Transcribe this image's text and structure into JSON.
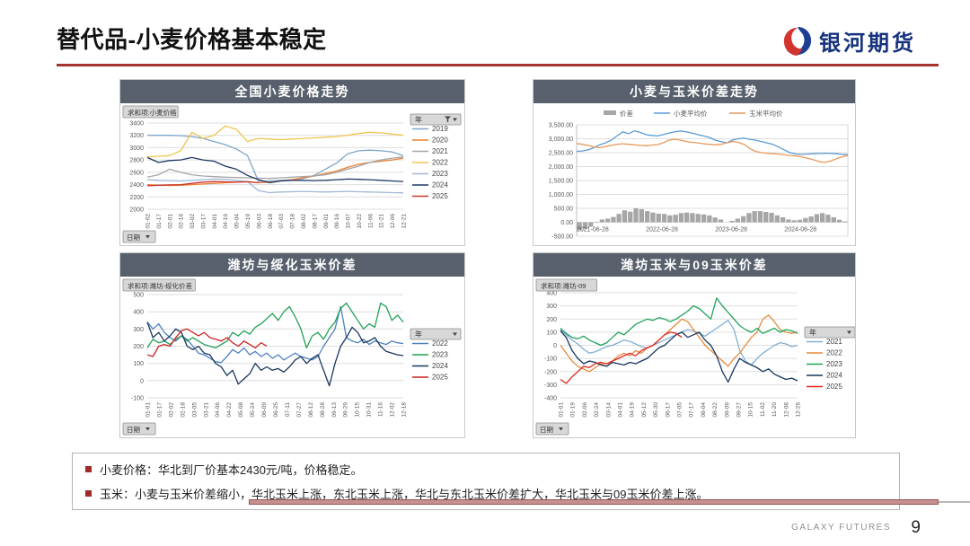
{
  "slide": {
    "title": "替代品-小麦价格基本稳定",
    "logo_text": "银河期货",
    "footer_brand": "GALAXY FUTURES",
    "page_number": "9",
    "accent_red": "#A3332E",
    "header_bar_color": "#57606C"
  },
  "notes": {
    "bullets": [
      "小麦价格：华北到厂价基本2430元/吨，价格稳定。",
      "玉米：小麦与玉米价差缩小，华北玉米上涨，东北玉米上涨，华北与东北玉米价差扩大，华北玉米与09玉米价差上涨。"
    ]
  },
  "chart_data": [
    {
      "id": "national-wheat-price",
      "type": "line",
      "title": "全国小麦价格走势",
      "pivot_label": "求和项:小麦价格",
      "legend_header": "年",
      "legend_filtered": true,
      "bottom_chip": "日期",
      "ylim": [
        2000,
        3400
      ],
      "ytick_step": 200,
      "y_format": "plain",
      "x_labels": [
        "01-02",
        "01-17",
        "02-01",
        "02-16",
        "03-02",
        "03-17",
        "04-01",
        "04-16",
        "05-04",
        "05-19",
        "06-03",
        "06-18",
        "07-03",
        "07-18",
        "08-02",
        "08-17",
        "09-01",
        "09-16",
        "10-07",
        "10-22",
        "11-06",
        "11-21",
        "12-06",
        "12-21"
      ],
      "series": [
        {
          "name": "2019",
          "color": "#7EA6CB",
          "values": [
            3200,
            3200,
            3200,
            3195,
            3180,
            3150,
            3100,
            3050,
            2980,
            2870,
            2450,
            2460,
            2470,
            2480,
            2500,
            2550,
            2650,
            2750,
            2900,
            2950,
            2960,
            2950,
            2930,
            2870
          ]
        },
        {
          "name": "2020",
          "color": "#ED7D31",
          "values": [
            2400,
            2390,
            2385,
            2390,
            2400,
            2410,
            2420,
            2430,
            2440,
            2450,
            2430,
            2440,
            2460,
            2480,
            2510,
            2540,
            2580,
            2620,
            2680,
            2730,
            2760,
            2780,
            2800,
            2830
          ]
        },
        {
          "name": "2021",
          "color": "#A5A5A5",
          "values": [
            2520,
            2560,
            2650,
            2600,
            2560,
            2540,
            2530,
            2520,
            2515,
            2510,
            2505,
            2500,
            2510,
            2520,
            2530,
            2540,
            2560,
            2600,
            2650,
            2700,
            2760,
            2800,
            2830,
            2850
          ]
        },
        {
          "name": "2022",
          "color": "#F1C44F",
          "values": [
            2850,
            2860,
            2870,
            2950,
            3250,
            3150,
            3200,
            3350,
            3300,
            3100,
            3150,
            3140,
            3130,
            3140,
            3150,
            3160,
            3170,
            3180,
            3200,
            3230,
            3250,
            3240,
            3220,
            3200
          ]
        },
        {
          "name": "2023",
          "color": "#9FB8D6",
          "values": [
            2480,
            2470,
            2465,
            2460,
            2470,
            2480,
            2490,
            2485,
            2470,
            2450,
            2300,
            2270,
            2280,
            2285,
            2290,
            2285,
            2280,
            2285,
            2290,
            2285,
            2280,
            2275,
            2270,
            2265
          ]
        },
        {
          "name": "2024",
          "color": "#1F3864",
          "values": [
            2840,
            2760,
            2790,
            2800,
            2840,
            2800,
            2780,
            2700,
            2650,
            2550,
            2480,
            2430,
            2460,
            2470,
            2470,
            2465,
            2470,
            2480,
            2490,
            2485,
            2480,
            2470,
            2460,
            2450
          ]
        },
        {
          "name": "2025",
          "color": "#C9342E",
          "values": [
            2380,
            2390,
            2395,
            2400,
            2420,
            2440,
            2450,
            2445,
            2440,
            2445,
            2430,
            null,
            null,
            null,
            null,
            null,
            null,
            null,
            null,
            null,
            null,
            null,
            null,
            null
          ]
        }
      ]
    },
    {
      "id": "wheat-corn-spread",
      "type": "line+bar",
      "title": "小麦与玉米价差走势",
      "ylim": [
        -500,
        3500
      ],
      "ytick_step": 500,
      "y_format": "comma2",
      "x_labels": [
        "2021-06-28",
        "2022-06-28",
        "2023-06-28",
        "2024-06-28"
      ],
      "bars": {
        "name": "价差",
        "color": "#A6A6A6",
        "values": [
          -280,
          -240,
          -160,
          -20,
          100,
          130,
          190,
          300,
          430,
          380,
          500,
          470,
          400,
          350,
          310,
          300,
          250,
          270,
          330,
          350,
          330,
          300,
          280,
          250,
          170,
          100,
          0,
          50,
          130,
          220,
          330,
          400,
          400,
          370,
          340,
          250,
          180,
          100,
          70,
          90,
          150,
          210,
          290,
          330,
          270,
          180,
          90,
          30
        ]
      },
      "series": [
        {
          "name": "小麦平均价",
          "color": "#5B9BD5",
          "values": [
            2550,
            2560,
            2600,
            2680,
            2780,
            2850,
            2950,
            3100,
            3250,
            3180,
            3280,
            3230,
            3150,
            3120,
            3100,
            3150,
            3200,
            3250,
            3280,
            3250,
            3200,
            3150,
            3100,
            3050,
            2950,
            2900,
            2850,
            2950,
            3000,
            3020,
            2980,
            2950,
            2900,
            2850,
            2800,
            2700,
            2600,
            2500,
            2450,
            2440,
            2450,
            2460,
            2470,
            2480,
            2470,
            2460,
            2440,
            2430
          ]
        },
        {
          "name": "玉米平均价",
          "color": "#E8995C",
          "values": [
            2830,
            2800,
            2760,
            2700,
            2680,
            2720,
            2760,
            2800,
            2820,
            2800,
            2780,
            2760,
            2750,
            2770,
            2790,
            2850,
            2950,
            2980,
            2950,
            2900,
            2870,
            2850,
            2820,
            2800,
            2780,
            2800,
            2850,
            2900,
            2870,
            2800,
            2650,
            2550,
            2500,
            2480,
            2460,
            2450,
            2420,
            2400,
            2380,
            2350,
            2300,
            2250,
            2180,
            2150,
            2200,
            2280,
            2350,
            2400
          ]
        }
      ]
    },
    {
      "id": "weifang-suihua-corn-spread",
      "type": "line",
      "title": "潍坊与绥化玉米价差",
      "pivot_label": "求和项:潍坊-绥化价差",
      "legend_header": "年",
      "legend_filtered": false,
      "bottom_chip": "日期",
      "ylim": [
        -100,
        500
      ],
      "ytick_step": 100,
      "y_format": "plain",
      "x_labels": [
        "01-01",
        "01-17",
        "02-02",
        "02-18",
        "03-05",
        "03-21",
        "04-06",
        "04-22",
        "05-08",
        "05-24",
        "06-09",
        "06-25",
        "07-11",
        "07-27",
        "08-12",
        "08-28",
        "09-13",
        "09-29",
        "10-15",
        "10-31",
        "11-16",
        "12-02",
        "12-18"
      ],
      "series": [
        {
          "name": "2022",
          "color": "#4E81BD",
          "values": [
            340,
            300,
            330,
            280,
            250,
            230,
            260,
            240,
            200,
            160,
            150,
            130,
            110,
            105,
            140,
            180,
            160,
            190,
            150,
            170,
            140,
            160,
            130,
            150,
            120,
            140,
            160,
            140,
            130,
            120,
            140,
            200,
            250,
            300,
            430,
            250,
            230,
            220,
            240,
            210,
            230,
            220,
            210,
            230,
            220,
            215
          ]
        },
        {
          "name": "2023",
          "color": "#21A057",
          "values": [
            190,
            240,
            220,
            230,
            210,
            240,
            260,
            230,
            250,
            230,
            210,
            200,
            190,
            210,
            230,
            280,
            260,
            290,
            270,
            310,
            330,
            360,
            390,
            350,
            400,
            430,
            370,
            300,
            190,
            260,
            280,
            240,
            300,
            340,
            420,
            450,
            400,
            350,
            300,
            330,
            310,
            450,
            430,
            350,
            380,
            340
          ]
        },
        {
          "name": "2024",
          "color": "#17375E",
          "values": [
            340,
            250,
            280,
            230,
            260,
            300,
            280,
            200,
            180,
            200,
            160,
            150,
            100,
            80,
            30,
            60,
            -20,
            10,
            40,
            100,
            60,
            80,
            60,
            70,
            50,
            80,
            120,
            140,
            100,
            130,
            150,
            60,
            -30,
            100,
            200,
            250,
            310,
            280,
            220,
            230,
            250,
            200,
            170,
            160,
            150,
            145
          ]
        },
        {
          "name": "2025",
          "color": "#CC2222",
          "values": [
            150,
            140,
            200,
            210,
            200,
            250,
            290,
            300,
            280,
            260,
            280,
            250,
            240,
            230,
            250,
            220,
            200,
            230,
            210,
            190,
            220,
            200,
            null,
            null,
            null,
            null,
            null,
            null,
            null,
            null,
            null,
            null,
            null,
            null,
            null,
            null,
            null,
            null,
            null,
            null,
            null,
            null,
            null,
            null,
            null,
            null
          ]
        }
      ]
    },
    {
      "id": "weifang-09-corn-spread",
      "type": "line",
      "title": "潍坊玉米与09玉米价差",
      "pivot_label": "求和项:潍坊-09",
      "legend_header": "年",
      "legend_filtered": false,
      "bottom_chip": "日期",
      "ylim": [
        -400,
        400
      ],
      "ytick_step": 100,
      "y_format": "plain",
      "x_labels": [
        "01-01",
        "01-19",
        "02-06",
        "02-24",
        "03-14",
        "04-01",
        "04-19",
        "05-12",
        "05-30",
        "06-17",
        "07-05",
        "07-17",
        "08-04",
        "08-22",
        "09-09",
        "09-27",
        "10-15",
        "11-02",
        "11-20",
        "12-08",
        "12-26"
      ],
      "series": [
        {
          "name": "2021",
          "color": "#7FAFD4",
          "values": [
            120,
            80,
            40,
            10,
            -30,
            -60,
            -50,
            -30,
            -10,
            0,
            20,
            40,
            30,
            10,
            -10,
            -20,
            0,
            20,
            40,
            60,
            80,
            100,
            120,
            110,
            90,
            70,
            100,
            130,
            160,
            190,
            120,
            -40,
            -120,
            -150,
            -100,
            -60,
            -30,
            0,
            20,
            10,
            -10,
            0
          ]
        },
        {
          "name": "2022",
          "color": "#E58A3C",
          "values": [
            0,
            -60,
            -120,
            -160,
            -180,
            -200,
            -170,
            -140,
            -160,
            -120,
            -80,
            -60,
            -80,
            -40,
            -60,
            -20,
            0,
            40,
            80,
            120,
            160,
            200,
            180,
            120,
            60,
            0,
            -40,
            -80,
            -120,
            -160,
            -100,
            -60,
            0,
            60,
            100,
            200,
            230,
            180,
            120,
            100,
            90,
            100
          ]
        },
        {
          "name": "2023",
          "color": "#1FA35C",
          "values": [
            130,
            90,
            60,
            50,
            70,
            40,
            20,
            0,
            20,
            60,
            100,
            80,
            120,
            160,
            180,
            200,
            190,
            210,
            200,
            180,
            200,
            230,
            260,
            300,
            280,
            240,
            200,
            360,
            300,
            250,
            200,
            150,
            120,
            100,
            130,
            90,
            110,
            130,
            100,
            120,
            110,
            90
          ]
        },
        {
          "name": "2024",
          "color": "#17375E",
          "values": [
            110,
            60,
            -40,
            -100,
            -140,
            -120,
            -130,
            -150,
            -160,
            -130,
            -140,
            -150,
            -130,
            -140,
            -120,
            -100,
            -60,
            -20,
            0,
            40,
            80,
            100,
            60,
            80,
            100,
            40,
            0,
            -80,
            -200,
            -280,
            -180,
            -100,
            -130,
            -150,
            -170,
            -200,
            -180,
            -220,
            -240,
            -260,
            -250,
            -270
          ]
        },
        {
          "name": "2025",
          "color": "#E02420",
          "values": [
            -260,
            -290,
            -240,
            -200,
            -160,
            -170,
            -140,
            -130,
            -140,
            -120,
            -100,
            -80,
            -60,
            -80,
            -40,
            -20,
            0,
            40,
            80,
            100,
            90,
            60,
            null,
            null,
            null,
            null,
            null,
            null,
            null,
            null,
            null,
            null,
            null,
            null,
            null,
            null,
            null,
            null,
            null,
            null,
            null,
            null
          ]
        }
      ]
    }
  ]
}
